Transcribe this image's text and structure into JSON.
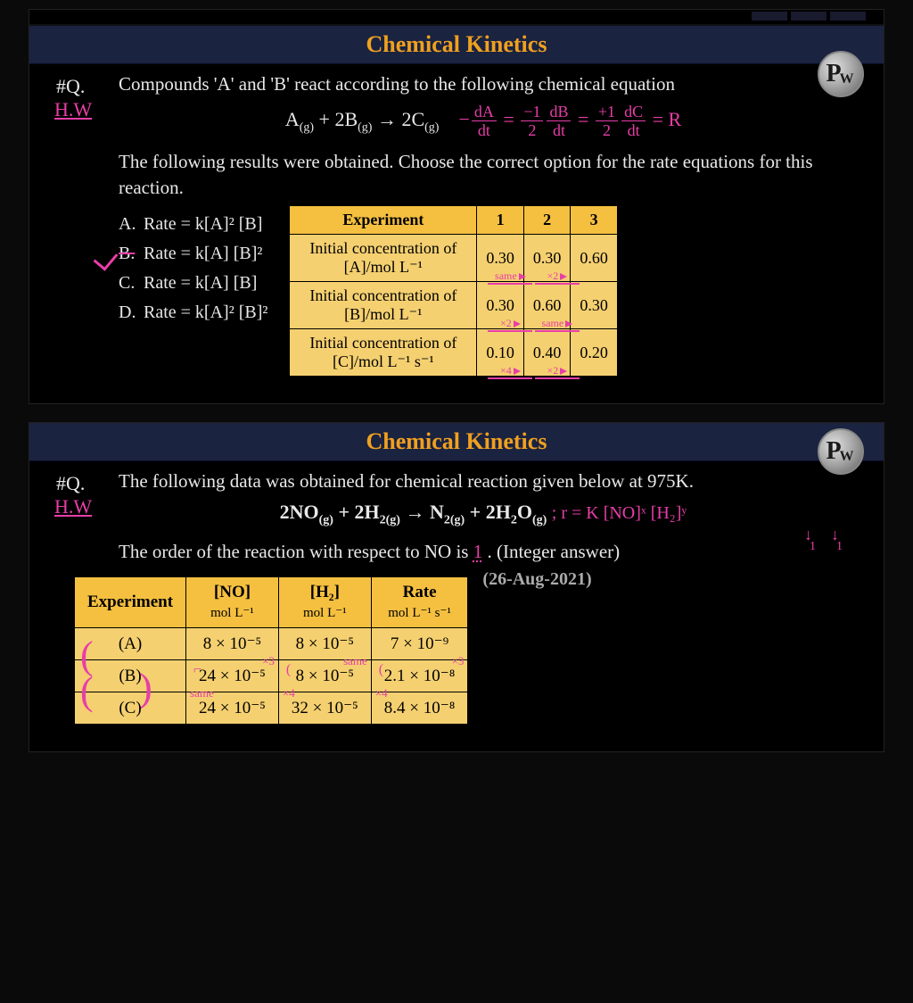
{
  "slide1": {
    "title": "Chemical Kinetics",
    "qmark": "#Q.",
    "hw": "H.W",
    "q_line1": "Compounds 'A' and 'B' react according to the following chemical equation",
    "eq_main": "A<span class=\"sub-s\">(g)</span> + 2B<span class=\"sub-s\">(g)</span> → 2C<span class=\"sub-s\">(g)</span>",
    "eq_hand_parts": [
      "−",
      "dA",
      "dt",
      "=",
      "−1",
      "2",
      "dB",
      "dt",
      "=",
      "+1",
      "2",
      "dC",
      "dt",
      "= R"
    ],
    "q_line2": "The following results were obtained. Choose the correct option for the rate equations for this reaction.",
    "options": [
      {
        "label": "A.",
        "text": "Rate = k[A]² [B]"
      },
      {
        "label": "B.",
        "text": "Rate = k[A] [B]²",
        "correct": true
      },
      {
        "label": "C.",
        "text": "Rate = k[A] [B]"
      },
      {
        "label": "D.",
        "text": "Rate = k[A]² [B]²"
      }
    ],
    "table": {
      "header": [
        "Experiment",
        "1",
        "2",
        "3"
      ],
      "rows": [
        {
          "label": "Initial concentration of [A]/mol L⁻¹",
          "cells": [
            "0.30",
            "0.30",
            "0.60"
          ],
          "annot_mid": "same",
          "annot_right": "×2"
        },
        {
          "label": "Initial concentration of [B]/mol L⁻¹",
          "cells": [
            "0.30",
            "0.60",
            "0.30"
          ],
          "annot_mid": "×2",
          "annot_right": "same"
        },
        {
          "label": "Initial concentration of [C]/mol L⁻¹ s⁻¹",
          "cells": [
            "0.10",
            "0.40",
            "0.20"
          ],
          "annot_mid": "×4",
          "annot_right": "×2"
        }
      ]
    }
  },
  "slide2": {
    "title": "Chemical Kinetics",
    "qmark": "#Q.",
    "hw": "H.W",
    "q_line1": "The following data was obtained for chemical reaction given below at 975K.",
    "eq_main": "2NO<span class=\"sub-s\">(g)</span> + 2H<span class=\"sub-s\">2(g)</span> → N<span class=\"sub-s\">2(g)</span> + 2H<span class=\"sub-s\">2</span>O<span class=\"sub-s\">(g)</span>",
    "eq_hand": ";  r = K [NO]ˣ [H₂]ʸ",
    "q_line2_a": "The order of the reaction with respect to NO is ",
    "q_line2_b": " . (Integer answer)",
    "blank_hand": "1",
    "date": "(26-Aug-2021)",
    "table": {
      "header": [
        "Experiment",
        "[NO]\nmol L⁻¹",
        "[H₂]\nmol L⁻¹",
        "Rate\nmol L⁻¹ s⁻¹"
      ],
      "rows": [
        {
          "label": "(A)",
          "cells": [
            "8 × 10⁻⁵",
            "8 × 10⁻⁵",
            "7 × 10⁻⁹"
          ]
        },
        {
          "label": "(B)",
          "cells": [
            "24 × 10⁻⁵",
            "8 × 10⁻⁵",
            "2.1 × 10⁻⁸"
          ]
        },
        {
          "label": "(C)",
          "cells": [
            "24 × 10⁻⁵",
            "32 × 10⁻⁵",
            "8.4 × 10⁻⁸"
          ]
        }
      ],
      "annots": {
        "ab_no": "×3",
        "ab_h2": "same",
        "ab_rate": "×3",
        "bc_no": "same",
        "bc_h2": "×4",
        "bc_rate": "×4"
      }
    },
    "order_arrows": [
      "1",
      "1"
    ]
  },
  "logo": {
    "main": "P",
    "sub": "W"
  },
  "colors": {
    "bg": "#000000",
    "title_bg": "#1a2340",
    "title_fg": "#f0a020",
    "text": "#e8e8e8",
    "hand": "#e83ea8",
    "table_bg": "#f5d070",
    "table_header_bg": "#f5c040",
    "table_border": "#000000"
  }
}
